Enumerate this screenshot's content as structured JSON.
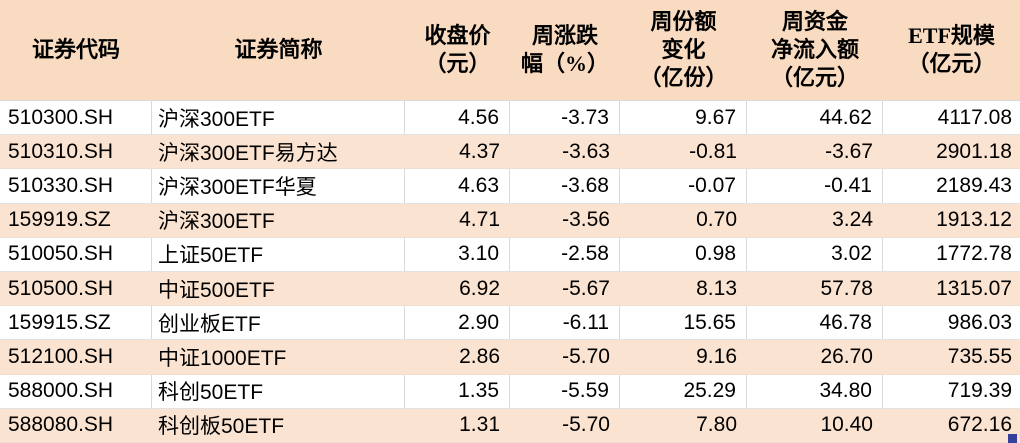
{
  "table": {
    "columns": [
      {
        "key": "code",
        "label": "证券代码",
        "align": "left"
      },
      {
        "key": "name",
        "label": "证券简称",
        "align": "left"
      },
      {
        "key": "close",
        "label": "收盘价\n（元）",
        "align": "right"
      },
      {
        "key": "week_chg",
        "label": "周涨跌\n幅（%）",
        "align": "right"
      },
      {
        "key": "share_chg",
        "label": "周份额\n变化\n（亿份）",
        "align": "right"
      },
      {
        "key": "net_inflow",
        "label": "周资金\n净流入额\n（亿元）",
        "align": "right"
      },
      {
        "key": "scale",
        "label": "ETF规模\n（亿元）",
        "align": "right"
      }
    ],
    "rows": [
      {
        "code": "510300.SH",
        "name": "沪深300ETF",
        "close": "4.56",
        "week_chg": "-3.73",
        "share_chg": "9.67",
        "net_inflow": "44.62",
        "scale": "4117.08"
      },
      {
        "code": "510310.SH",
        "name": "沪深300ETF易方达",
        "close": "4.37",
        "week_chg": "-3.63",
        "share_chg": "-0.81",
        "net_inflow": "-3.67",
        "scale": "2901.18"
      },
      {
        "code": "510330.SH",
        "name": "沪深300ETF华夏",
        "close": "4.63",
        "week_chg": "-3.68",
        "share_chg": "-0.07",
        "net_inflow": "-0.41",
        "scale": "2189.43"
      },
      {
        "code": "159919.SZ",
        "name": "沪深300ETF",
        "close": "4.71",
        "week_chg": "-3.56",
        "share_chg": "0.70",
        "net_inflow": "3.24",
        "scale": "1913.12"
      },
      {
        "code": "510050.SH",
        "name": "上证50ETF",
        "close": "3.10",
        "week_chg": "-2.58",
        "share_chg": "0.98",
        "net_inflow": "3.02",
        "scale": "1772.78"
      },
      {
        "code": "510500.SH",
        "name": "中证500ETF",
        "close": "6.92",
        "week_chg": "-5.67",
        "share_chg": "8.13",
        "net_inflow": "57.78",
        "scale": "1315.07"
      },
      {
        "code": "159915.SZ",
        "name": "创业板ETF",
        "close": "2.90",
        "week_chg": "-6.11",
        "share_chg": "15.65",
        "net_inflow": "46.78",
        "scale": "986.03"
      },
      {
        "code": "512100.SH",
        "name": "中证1000ETF",
        "close": "2.86",
        "week_chg": "-5.70",
        "share_chg": "9.16",
        "net_inflow": "26.70",
        "scale": "735.55"
      },
      {
        "code": "588000.SH",
        "name": "科创50ETF",
        "close": "1.35",
        "week_chg": "-5.59",
        "share_chg": "25.29",
        "net_inflow": "34.80",
        "scale": "719.39"
      },
      {
        "code": "588080.SH",
        "name": "科创板50ETF",
        "close": "1.31",
        "week_chg": "-5.70",
        "share_chg": "7.80",
        "net_inflow": "10.40",
        "scale": "672.16"
      }
    ]
  },
  "colors": {
    "header_bg": "#f9dbc1",
    "row_alt_bg": "#fbe3d1",
    "row_bg": "#ffffff",
    "grid": "#d9d9d9",
    "text": "#000000",
    "handle": "#35409a"
  }
}
